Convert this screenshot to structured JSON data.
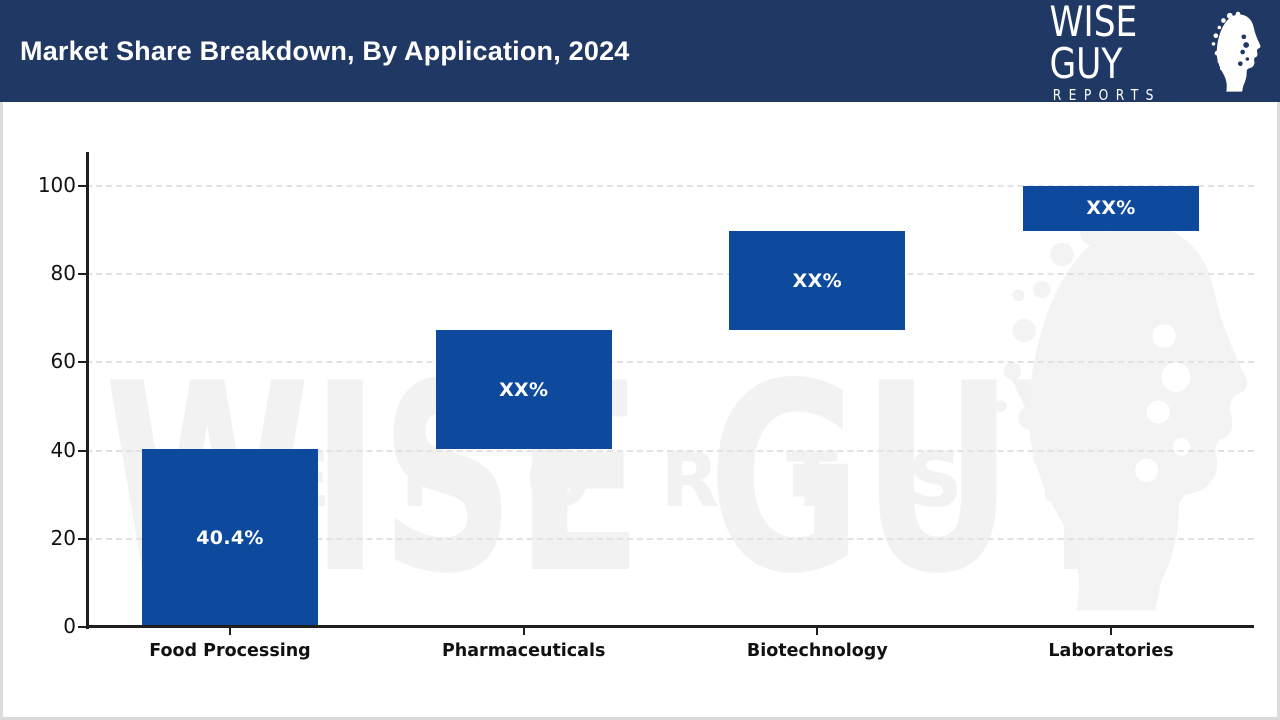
{
  "header": {
    "title": "Market Share Breakdown, By Application, 2024",
    "logo": {
      "line1": "WISE GUY",
      "line2": "REPORTS"
    }
  },
  "watermark": {
    "line1": "WISE GUY",
    "line2": "REPORTS"
  },
  "chart_data": {
    "type": "bar",
    "subtype": "waterfall",
    "title": "Market Share Breakdown, By Application, 2024",
    "categories": [
      "Food Processing",
      "Pharmaceuticals",
      "Biotechnology",
      "Laboratories"
    ],
    "bars": [
      {
        "category": "Food Processing",
        "start": 0,
        "end": 40.4,
        "label": "40.4%"
      },
      {
        "category": "Pharmaceuticals",
        "start": 40.4,
        "end": 67.3,
        "label": "XX%"
      },
      {
        "category": "Biotechnology",
        "start": 67.3,
        "end": 89.8,
        "label": "XX%"
      },
      {
        "category": "Laboratories",
        "start": 89.8,
        "end": 100,
        "label": "XX%"
      }
    ],
    "yticks": [
      0,
      20,
      40,
      60,
      80,
      100
    ],
    "ylim": [
      0,
      100
    ],
    "grid": "horizontal-dashed",
    "legend": "none",
    "bar_color": "#0d4a9e",
    "bar_label_color": "#ffffff"
  },
  "colors": {
    "header_bg": "#203864",
    "bar": "#0d4a9e",
    "gridline": "#e2e2e2",
    "axis": "#1f1f1f",
    "watermark": "#f2f2f2",
    "frame_border": "#d9d9d9"
  }
}
